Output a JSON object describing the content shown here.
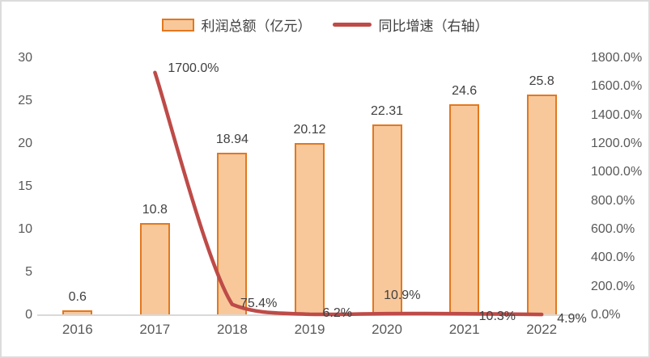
{
  "chart_data": {
    "type": "bar+line combo",
    "title": "",
    "categories": [
      "2016",
      "2017",
      "2018",
      "2019",
      "2020",
      "2021",
      "2022"
    ],
    "series": [
      {
        "name": "利润总额（亿元）",
        "chart_type": "bar",
        "axis": "left",
        "values": [
          0.6,
          10.8,
          18.94,
          20.12,
          22.31,
          24.6,
          25.8
        ],
        "data_labels": [
          "0.6",
          "10.8",
          "18.94",
          "20.12",
          "22.31",
          "24.6",
          "25.8"
        ]
      },
      {
        "name": "同比增速（右轴）",
        "chart_type": "line",
        "axis": "right",
        "values": [
          null,
          1700.0,
          75.4,
          6.2,
          10.9,
          10.3,
          4.9
        ],
        "data_labels": [
          "",
          "1700.0%",
          "75.4%",
          "6.2%",
          "10.9%",
          "10.3%",
          "4.9%"
        ]
      }
    ],
    "left_axis": {
      "min": 0,
      "max": 30,
      "ticks": [
        "0",
        "5",
        "10",
        "15",
        "20",
        "25",
        "30"
      ]
    },
    "right_axis": {
      "min": 0,
      "max": 1800,
      "ticks": [
        "0.0%",
        "200.0%",
        "400.0%",
        "600.0%",
        "800.0%",
        "1000.0%",
        "1200.0%",
        "1400.0%",
        "1600.0%",
        "1800.0%"
      ]
    },
    "legend_position": "top",
    "grid": false
  },
  "colors": {
    "bar_fill": "#f8c89a",
    "bar_border": "#e2781f",
    "line": "#be4b48",
    "axis_text": "#595959",
    "data_label": "#404040",
    "axis_line": "#d9d9d9",
    "background": "#ffffff",
    "chart_border": "#dcdcdc"
  }
}
